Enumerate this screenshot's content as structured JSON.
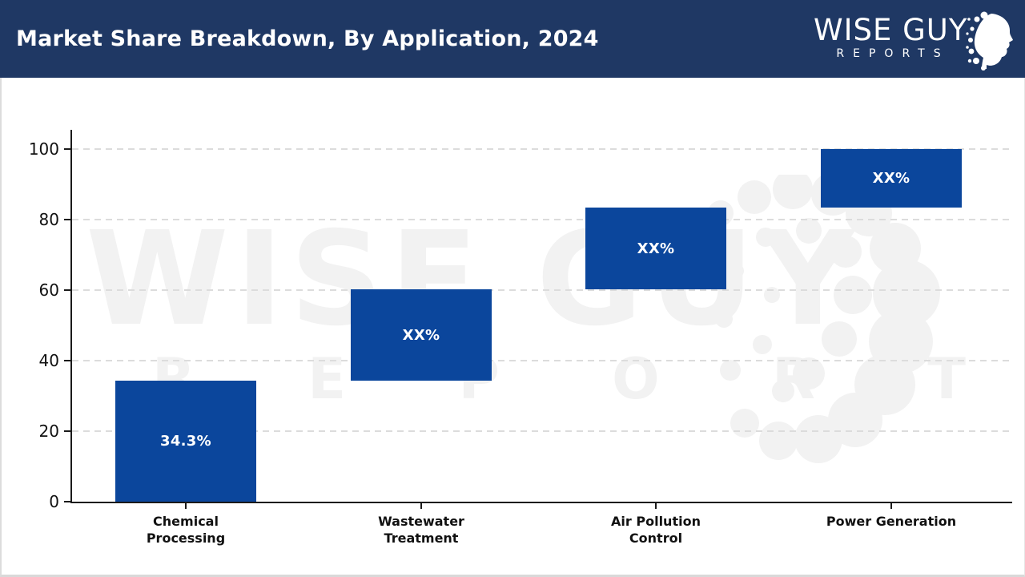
{
  "header": {
    "title": "Market Share Breakdown, By Application, 2024",
    "logo": {
      "name": "WISE GUY",
      "tagline": "REPORTS"
    }
  },
  "watermark": {
    "line1": "WISE GUY",
    "line2": "R E P O R T S"
  },
  "colors": {
    "header_bg": "#1f3864",
    "bar_fill": "#0b469c",
    "bar_label": "#ffffff",
    "gridline": "#dcdcdc",
    "axis": "#1a1a1a",
    "watermark": "#f2f2f2"
  },
  "chart_data": {
    "type": "bar",
    "variant": "waterfall",
    "title": "Market Share Breakdown, By Application, 2024",
    "categories": [
      [
        "Chemical",
        "Processing"
      ],
      [
        "Wastewater",
        "Treatment"
      ],
      [
        "Air Pollution",
        "Control"
      ],
      [
        "Power Generation"
      ]
    ],
    "series": [
      {
        "name": "Chemical Processing",
        "start": 0,
        "end": 34.3,
        "label": "34.3%"
      },
      {
        "name": "Wastewater Treatment",
        "start": 34.3,
        "end": 60.3,
        "label": "XX%"
      },
      {
        "name": "Air Pollution Control",
        "start": 60.3,
        "end": 83.4,
        "label": "XX%"
      },
      {
        "name": "Power Generation",
        "start": 83.4,
        "end": 100,
        "label": "XX%"
      }
    ],
    "ylim": [
      0,
      100
    ],
    "yticks": [
      0,
      20,
      40,
      60,
      80,
      100
    ],
    "xlabel": "",
    "ylabel": "",
    "grid": "horizontal-dashed",
    "legend": "none"
  }
}
